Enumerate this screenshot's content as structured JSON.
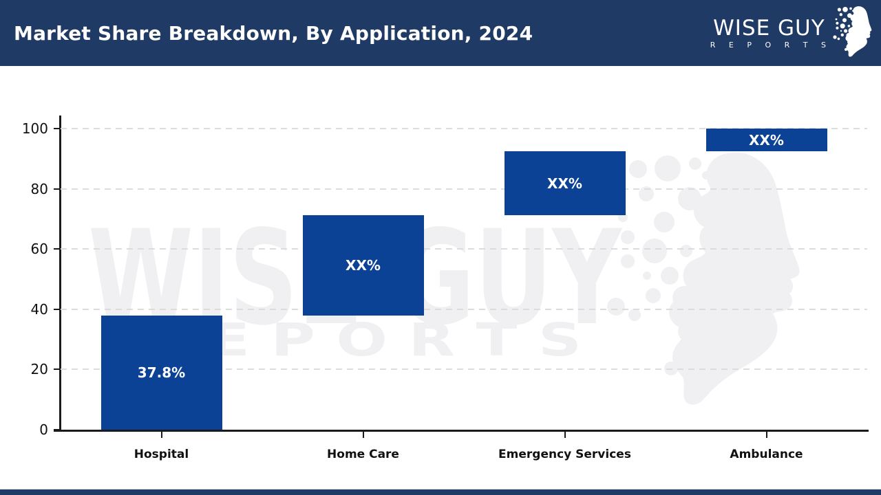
{
  "header": {
    "title": "Market Share Breakdown, By Application, 2024",
    "logo": {
      "line1": "WISE GUY",
      "line2": "R E P O R T S"
    }
  },
  "watermark": {
    "line1": "WISE GUY",
    "line2": "R E P O R T S"
  },
  "colors": {
    "header_bg": "#203A66",
    "footer_bg": "#203A66",
    "bar": "#0C4296",
    "grid": "#DCDCDC",
    "axis": "#1A1A1A",
    "watermark": "#F0F0F2",
    "bar_label": "#FFFFFF"
  },
  "chart_data": {
    "type": "bar",
    "variant": "waterfall",
    "title": "Market Share Breakdown, By Application, 2024",
    "xlabel": "",
    "ylabel": "",
    "categories": [
      "Hospital",
      "Home Care",
      "Emergency Services",
      "Ambulance"
    ],
    "series": [
      {
        "name": "Market share",
        "segments": [
          {
            "category": "Hospital",
            "start": 0,
            "end": 37.8,
            "label": "37.8%"
          },
          {
            "category": "Home Care",
            "start": 37.8,
            "end": 71.2,
            "label": "XX%"
          },
          {
            "category": "Emergency Services",
            "start": 71.2,
            "end": 92.4,
            "label": "XX%"
          },
          {
            "category": "Ambulance",
            "start": 92.4,
            "end": 100,
            "label": "XX%"
          }
        ]
      }
    ],
    "ylim": [
      0,
      104
    ],
    "yticks": [
      0,
      20,
      40,
      60,
      80,
      100
    ],
    "grid": "horizontal-dashed",
    "legend": false
  }
}
